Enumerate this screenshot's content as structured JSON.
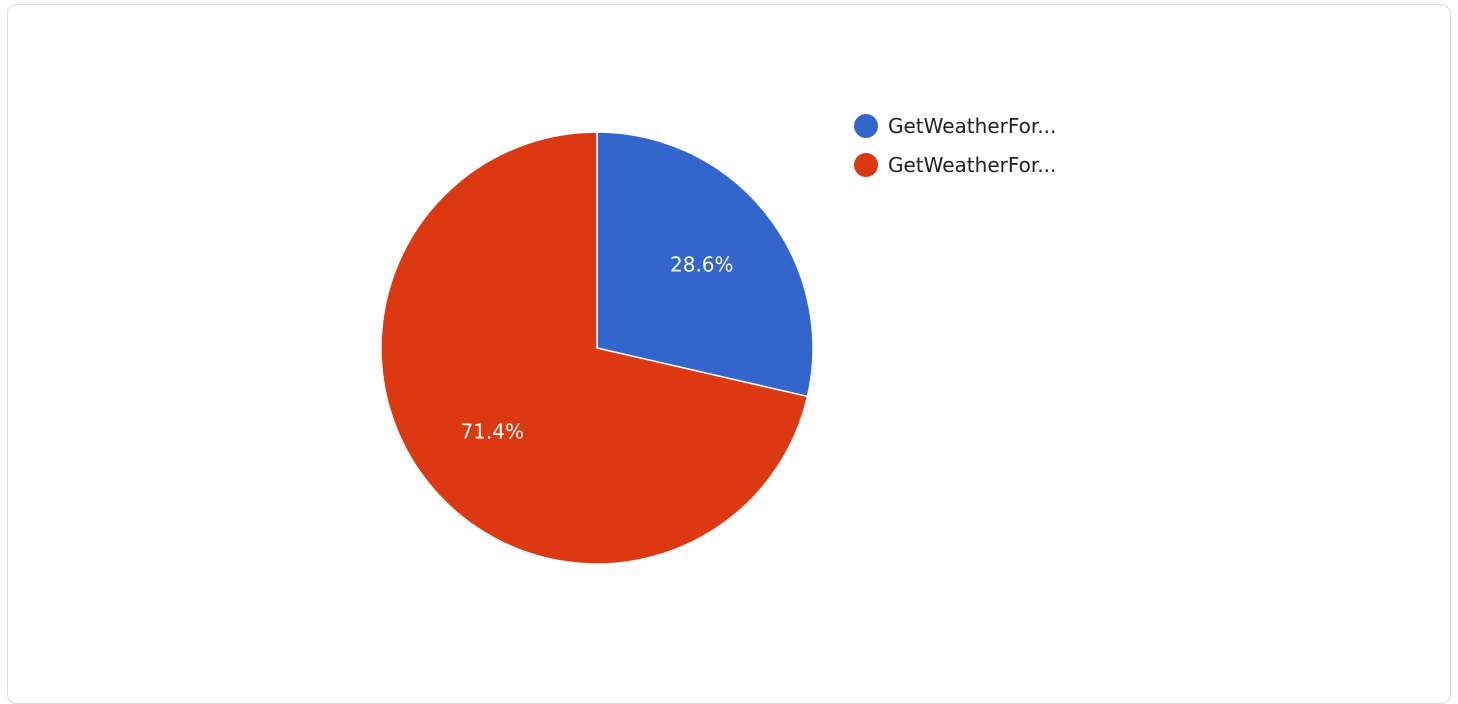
{
  "chart_data": {
    "type": "pie",
    "slices": [
      {
        "label": "GetWeatherFor...",
        "value": 28.6,
        "display": "28.6%",
        "color": "#3366cc"
      },
      {
        "label": "GetWeatherFor...",
        "value": 71.4,
        "display": "71.4%",
        "color": "#dc3912"
      }
    ],
    "legend_position": "right",
    "start_angle": "12 o'clock",
    "direction": "clockwise"
  }
}
